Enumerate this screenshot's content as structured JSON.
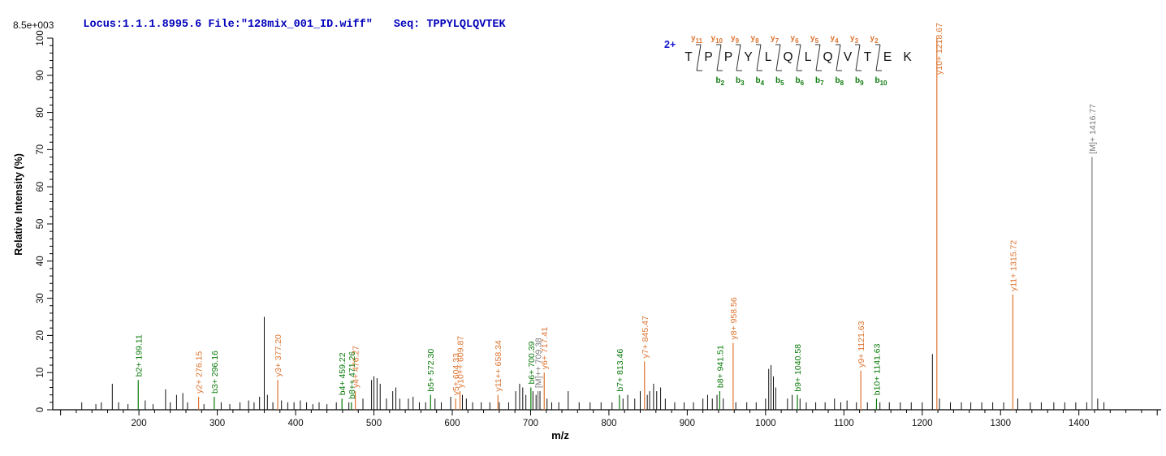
{
  "header": {
    "locus_file": "Locus:1.1.1.8995.6 File:\"128mix_001_ID.wiff\"",
    "seq_prefix": "Seq: ",
    "sequence": "TPPYLQLQVTEK"
  },
  "annotation": {
    "charge": "2+",
    "residues": [
      "T",
      "P",
      "P",
      "Y",
      "L",
      "Q",
      "L",
      "Q",
      "V",
      "T",
      "E",
      "K"
    ],
    "gaps": [
      {
        "y": "y11",
        "b": null
      },
      {
        "y": "y10",
        "b": "b2"
      },
      {
        "y": "y9",
        "b": "b3"
      },
      {
        "y": "y8",
        "b": "b4"
      },
      {
        "y": "y7",
        "b": "b5"
      },
      {
        "y": "y6",
        "b": "b6"
      },
      {
        "y": "y5",
        "b": "b7"
      },
      {
        "y": "y4",
        "b": "b8"
      },
      {
        "y": "y3",
        "b": "b9"
      },
      {
        "y": "y2",
        "b": "b10"
      },
      {
        "y": null,
        "b": null
      }
    ]
  },
  "colors": {
    "header_text": "#0000bb",
    "charge": "#1515cc",
    "b_ion": "#0a7a0a",
    "y_ion": "#dd7430",
    "precursor": "#7a7a7a",
    "noise": "#111111",
    "axis": "#000000"
  },
  "chart_data": {
    "type": "bar",
    "subtype": "msms-stick-spectrum",
    "title": "",
    "xlabel": "m/z",
    "ylabel": "Relative  Intensity (%)",
    "intensity_scale": "8.5e+003",
    "xlim": [
      90,
      1505
    ],
    "ylim": [
      0,
      100
    ],
    "x_major_step": 100,
    "x_minor_step": 20,
    "x_label_min": 200,
    "x_label_max": 1400,
    "y_major_step": 10,
    "y_minor_step": 2,
    "legend": "none",
    "grid": false,
    "labeled_peaks": [
      {
        "label": "b2+ 199.11",
        "ion": "b",
        "mz": 199.11,
        "intensity": 8
      },
      {
        "label": "y2+ 276.15",
        "ion": "y",
        "mz": 276.15,
        "intensity": 3.5
      },
      {
        "label": "b3+ 296.16",
        "ion": "b",
        "mz": 296.16,
        "intensity": 3.5
      },
      {
        "label": "y3+ 377.20",
        "ion": "y",
        "mz": 377.2,
        "intensity": 8
      },
      {
        "label": "b4+ 459.22",
        "ion": "b",
        "mz": 459.22,
        "intensity": 3
      },
      {
        "label": "b8++ 471.26",
        "ion": "b",
        "mz": 471.26,
        "intensity": 2
      },
      {
        "label": "y4+ 476.27",
        "ion": "y",
        "mz": 476.27,
        "intensity": 5
      },
      {
        "label": "b5+ 572.30",
        "ion": "b",
        "mz": 572.3,
        "intensity": 4
      },
      {
        "label": "y5+ 604.33",
        "ion": "y",
        "mz": 604.33,
        "intensity": 3
      },
      {
        "label": "y10++ 609.87",
        "ion": "y",
        "mz": 609.87,
        "intensity": 5
      },
      {
        "label": "y11++ 658.34",
        "ion": "y",
        "mz": 658.34,
        "intensity": 4
      },
      {
        "label": "b6+ 700.39",
        "ion": "b",
        "mz": 700.39,
        "intensity": 6
      },
      {
        "label": "[M]++ 709.38",
        "ion": "M",
        "mz": 709.38,
        "intensity": 5
      },
      {
        "label": "y6+ 717.41",
        "ion": "y",
        "mz": 717.41,
        "intensity": 10
      },
      {
        "label": "b7+ 813.46",
        "ion": "b",
        "mz": 813.46,
        "intensity": 4
      },
      {
        "label": "y7+ 845.47",
        "ion": "y",
        "mz": 845.47,
        "intensity": 13
      },
      {
        "label": "b8+ 941.51",
        "ion": "b",
        "mz": 941.51,
        "intensity": 5
      },
      {
        "label": "y8+ 958.56",
        "ion": "y",
        "mz": 958.56,
        "intensity": 18
      },
      {
        "label": "b9+ 1040.58",
        "ion": "b",
        "mz": 1040.58,
        "intensity": 4
      },
      {
        "label": "y9+ 1121.63",
        "ion": "y",
        "mz": 1121.63,
        "intensity": 10.5
      },
      {
        "label": "b10+ 1141.63",
        "ion": "b",
        "mz": 1141.63,
        "intensity": 3
      },
      {
        "label": "y10+ 1218.67",
        "ion": "y",
        "mz": 1218.67,
        "intensity": 100
      },
      {
        "label": "y11+ 1315.72",
        "ion": "y",
        "mz": 1315.72,
        "intensity": 31
      },
      {
        "label": "[M]+ 1416.77",
        "ion": "M",
        "mz": 1416.77,
        "intensity": 68
      }
    ],
    "noise_peaks": [
      [
        127,
        2
      ],
      [
        145,
        1.5
      ],
      [
        152,
        2
      ],
      [
        166,
        7
      ],
      [
        174,
        2
      ],
      [
        186,
        1.5
      ],
      [
        208,
        2.5
      ],
      [
        218,
        1.5
      ],
      [
        234,
        5.5
      ],
      [
        240,
        2
      ],
      [
        248,
        4
      ],
      [
        256,
        4.5
      ],
      [
        262,
        2
      ],
      [
        283,
        1.5
      ],
      [
        305,
        2
      ],
      [
        316,
        1.5
      ],
      [
        329,
        2
      ],
      [
        340,
        2.5
      ],
      [
        347,
        2
      ],
      [
        354,
        3.5
      ],
      [
        360,
        25
      ],
      [
        364,
        4
      ],
      [
        371,
        2
      ],
      [
        382,
        2.5
      ],
      [
        390,
        2
      ],
      [
        398,
        2
      ],
      [
        406,
        2.5
      ],
      [
        414,
        2
      ],
      [
        422,
        1.5
      ],
      [
        430,
        2
      ],
      [
        440,
        1.5
      ],
      [
        452,
        2
      ],
      [
        468,
        2
      ],
      [
        486,
        3
      ],
      [
        497,
        8
      ],
      [
        500,
        9
      ],
      [
        504,
        8.5
      ],
      [
        508,
        7
      ],
      [
        516,
        3
      ],
      [
        524,
        5
      ],
      [
        528,
        6
      ],
      [
        533,
        3
      ],
      [
        544,
        3
      ],
      [
        550,
        3.5
      ],
      [
        558,
        2
      ],
      [
        566,
        2
      ],
      [
        578,
        3
      ],
      [
        586,
        2
      ],
      [
        598,
        3.5
      ],
      [
        613,
        4
      ],
      [
        618,
        3
      ],
      [
        626,
        2
      ],
      [
        637,
        2
      ],
      [
        648,
        2
      ],
      [
        660,
        2
      ],
      [
        672,
        2
      ],
      [
        681,
        5
      ],
      [
        686,
        7
      ],
      [
        690,
        6
      ],
      [
        694,
        4
      ],
      [
        703,
        5
      ],
      [
        707,
        4
      ],
      [
        712,
        5
      ],
      [
        721,
        3
      ],
      [
        727,
        2
      ],
      [
        736,
        2
      ],
      [
        748,
        5
      ],
      [
        762,
        2
      ],
      [
        776,
        2
      ],
      [
        790,
        2
      ],
      [
        804,
        2
      ],
      [
        818,
        3
      ],
      [
        824,
        4
      ],
      [
        833,
        3
      ],
      [
        840,
        5
      ],
      [
        849,
        4
      ],
      [
        852,
        5
      ],
      [
        857,
        7
      ],
      [
        861,
        5
      ],
      [
        866,
        6
      ],
      [
        872,
        3
      ],
      [
        884,
        2
      ],
      [
        896,
        2
      ],
      [
        908,
        2
      ],
      [
        920,
        3
      ],
      [
        926,
        4
      ],
      [
        932,
        3
      ],
      [
        938,
        4
      ],
      [
        946,
        3
      ],
      [
        962,
        2
      ],
      [
        976,
        2
      ],
      [
        988,
        2
      ],
      [
        1000,
        3
      ],
      [
        1004,
        11
      ],
      [
        1007,
        12
      ],
      [
        1010,
        9
      ],
      [
        1013,
        6
      ],
      [
        1028,
        3
      ],
      [
        1034,
        4
      ],
      [
        1044,
        3
      ],
      [
        1052,
        2
      ],
      [
        1064,
        2
      ],
      [
        1076,
        2
      ],
      [
        1088,
        3
      ],
      [
        1096,
        2
      ],
      [
        1104,
        2.5
      ],
      [
        1116,
        2
      ],
      [
        1130,
        2
      ],
      [
        1146,
        2
      ],
      [
        1158,
        2
      ],
      [
        1172,
        2
      ],
      [
        1186,
        2
      ],
      [
        1200,
        2
      ],
      [
        1213,
        15
      ],
      [
        1222,
        3
      ],
      [
        1236,
        2
      ],
      [
        1250,
        2
      ],
      [
        1262,
        2
      ],
      [
        1276,
        2
      ],
      [
        1290,
        2
      ],
      [
        1304,
        2
      ],
      [
        1322,
        3
      ],
      [
        1338,
        2
      ],
      [
        1352,
        2
      ],
      [
        1368,
        2
      ],
      [
        1382,
        2
      ],
      [
        1396,
        2
      ],
      [
        1410,
        2
      ],
      [
        1424,
        3
      ],
      [
        1432,
        2
      ]
    ]
  }
}
